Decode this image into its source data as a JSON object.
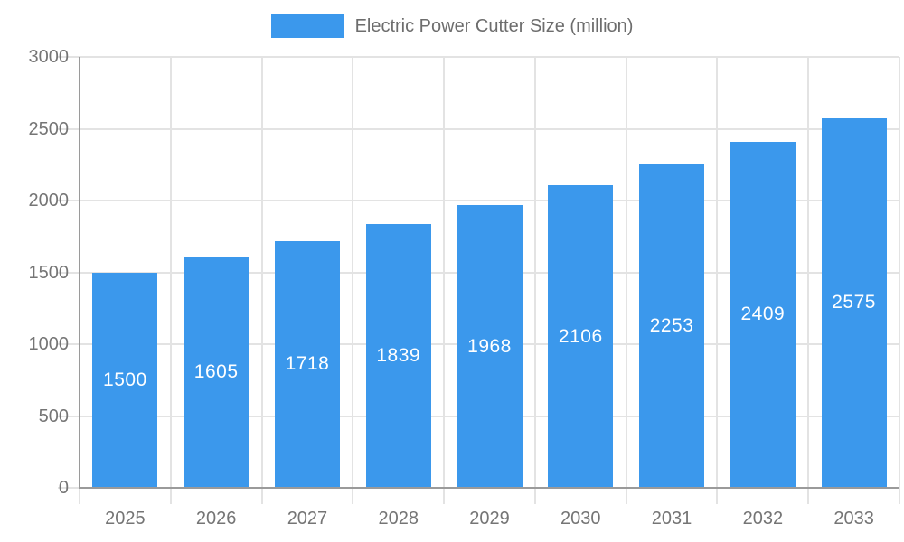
{
  "chart_data": {
    "type": "bar",
    "title": "Electric Power Cutter Size (million)",
    "categories": [
      "2025",
      "2026",
      "2027",
      "2028",
      "2029",
      "2030",
      "2031",
      "2032",
      "2033"
    ],
    "values": [
      1500,
      1605,
      1718,
      1839,
      1968,
      2106,
      2253,
      2409,
      2575
    ],
    "xlabel": "",
    "ylabel": "",
    "ylim": [
      0,
      3000
    ],
    "ytick_step": 500,
    "yticks": [
      0,
      500,
      1000,
      1500,
      2000,
      2500,
      3000
    ],
    "grid": true,
    "legend_position": "top",
    "value_labels_position": "inside-center",
    "colors": {
      "bar": "#3B98EC",
      "bar_value_text": "#ffffff",
      "axis_text": "#757575",
      "legend_text": "#6d6d6d",
      "gridline": "#e3e3e3",
      "axis_line": "#9a9a9a",
      "background": "#ffffff"
    }
  }
}
